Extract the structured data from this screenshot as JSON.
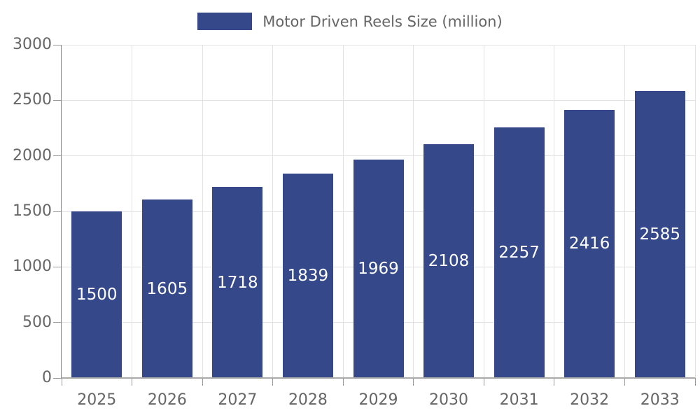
{
  "chart_data": {
    "type": "bar",
    "title": "Motor Driven Reels Size (million)",
    "categories": [
      "2025",
      "2026",
      "2027",
      "2028",
      "2029",
      "2030",
      "2031",
      "2032",
      "2033"
    ],
    "series": [
      {
        "name": "Motor Driven Reels Size (million)",
        "values": [
          1500,
          1605,
          1718,
          1839,
          1969,
          2108,
          2257,
          2416,
          2585
        ]
      }
    ],
    "xlabel": "",
    "ylabel": "",
    "ylim": [
      0,
      3000
    ],
    "yticks": [
      0,
      500,
      1000,
      1500,
      2000,
      2500,
      3000
    ],
    "grid": true,
    "legend_position": "top-center",
    "value_labels": "inside-center",
    "colors": {
      "bar": "#35498a",
      "value_label": "#ffffff",
      "axis_text": "#666666",
      "gridline": "#e2e2e2",
      "x_axis_line": "#aaaaaa",
      "y_axis_line": "#888888",
      "tick": "#999999",
      "background": "#ffffff"
    }
  }
}
